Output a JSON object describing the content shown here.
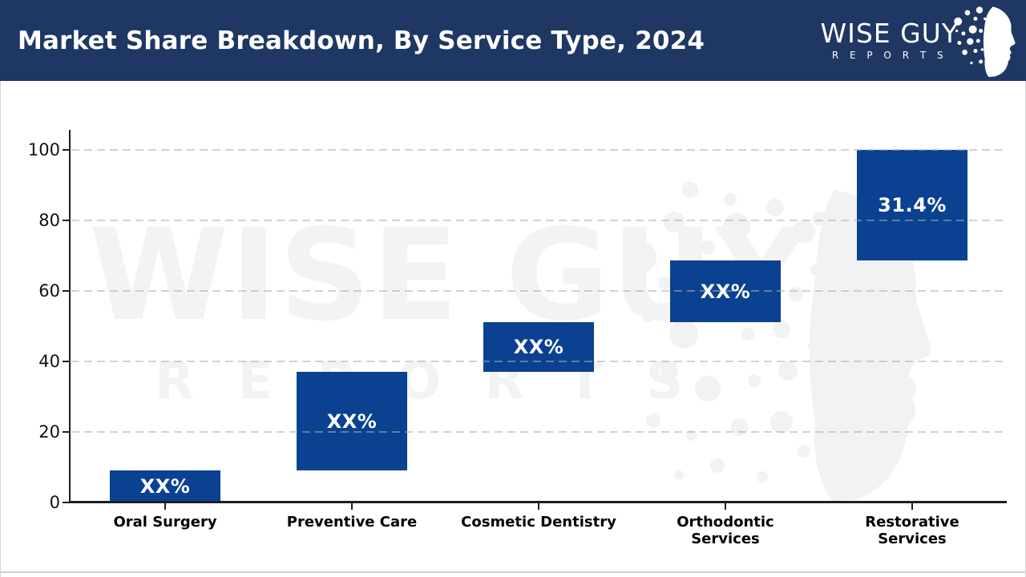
{
  "header": {
    "title": "Market Share Breakdown, By Service Type, 2024",
    "logo": {
      "name": "WISE GUY",
      "tagline": "R E P O R T S"
    }
  },
  "watermark": {
    "name": "WISE GUY",
    "tagline": "R E P O R T S"
  },
  "chart_data": {
    "type": "bar",
    "subtype": "waterfall",
    "title": "Market Share Breakdown, By Service Type, 2024",
    "categories": [
      "Oral Surgery",
      "Preventive Care",
      "Cosmetic Dentistry",
      "Orthodontic\nServices",
      "Restorative\nServices"
    ],
    "bars": [
      {
        "category": "Oral Surgery",
        "start": 0,
        "end": 9.2,
        "label": "XX%"
      },
      {
        "category": "Preventive Care",
        "start": 9.2,
        "end": 37.1,
        "label": "XX%"
      },
      {
        "category": "Cosmetic Dentistry",
        "start": 37.1,
        "end": 51.2,
        "label": "XX%"
      },
      {
        "category": "Orthodontic Services",
        "start": 51.2,
        "end": 68.6,
        "label": "XX%"
      },
      {
        "category": "Restorative Services",
        "start": 68.6,
        "end": 100,
        "label": "31.4%"
      }
    ],
    "xlabel": "",
    "ylabel": "",
    "ylim": [
      0,
      100
    ],
    "yticks": [
      0,
      20,
      40,
      60,
      80,
      100
    ],
    "grid": "horizontal-dashed",
    "legend": "none",
    "colors": {
      "bar": "#0A4191",
      "bar_label": "#FFFFFF",
      "header_bg": "#1F3763",
      "gridline": "#D9D9D9",
      "axis": "#1F1F1F",
      "watermark": "#F2F3F5"
    }
  }
}
